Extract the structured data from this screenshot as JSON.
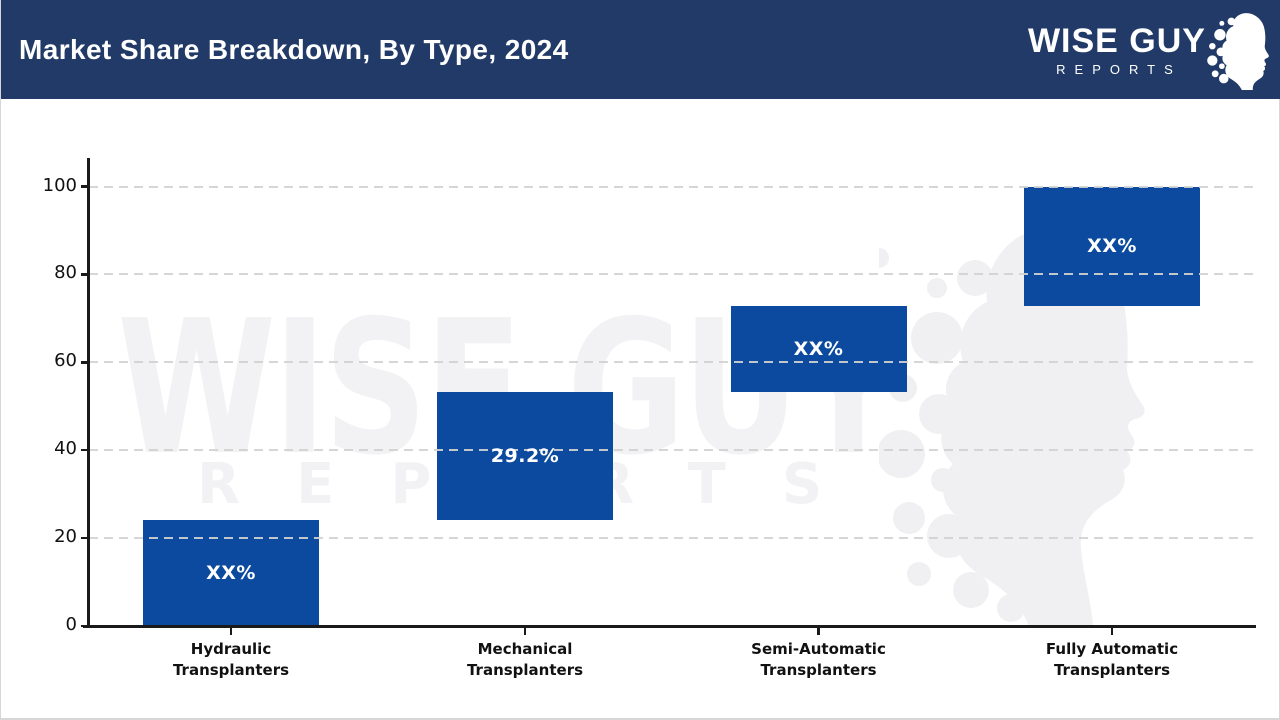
{
  "header": {
    "title": "Market Share Breakdown, By Type, 2024",
    "logo_line1": "WISE GUY",
    "logo_line2": "REPORTS"
  },
  "watermark": {
    "line1": "WISE GUY",
    "line2": "REPORTS"
  },
  "chart_data": {
    "type": "bar",
    "subtype": "floating-waterfall-percentage",
    "title": "Market Share Breakdown, By Type, 2024",
    "categories": [
      "Hydraulic Transplanters",
      "Mechanical Transplanters",
      "Semi-Automatic Transplanters",
      "Fully Automatic Transplanters"
    ],
    "category_lines": [
      [
        "Hydraulic",
        "Transplanters"
      ],
      [
        "Mechanical",
        "Transplanters"
      ],
      [
        "Semi-Automatic",
        "Transplanters"
      ],
      [
        "Fully Automatic",
        "Transplanters"
      ]
    ],
    "bars": [
      {
        "category": "Hydraulic Transplanters",
        "start": 0,
        "end": 24.1,
        "label": "XX%"
      },
      {
        "category": "Mechanical Transplanters",
        "start": 24.1,
        "end": 53.3,
        "label": "29.2%"
      },
      {
        "category": "Semi-Automatic Transplanters",
        "start": 53.3,
        "end": 72.7,
        "label": "XX%"
      },
      {
        "category": "Fully Automatic Transplanters",
        "start": 72.7,
        "end": 100,
        "label": "XX%"
      }
    ],
    "ylim": [
      0,
      100
    ],
    "yticks": [
      0,
      20,
      40,
      60,
      80,
      100
    ],
    "xlabel": "",
    "ylabel": "",
    "unit": "%",
    "grid": "horizontal-dashed",
    "legend": "none",
    "bar_color": "#0B4A9E"
  },
  "colors": {
    "header_bg": "#213A67",
    "bar_fill": "#0B4A9E",
    "axis": "#1A1A1A",
    "gridline": "#D2D2D2",
    "watermark": "#F2F2F4",
    "page_bg": "#FFFFFF",
    "border": "#D6D6D9"
  }
}
